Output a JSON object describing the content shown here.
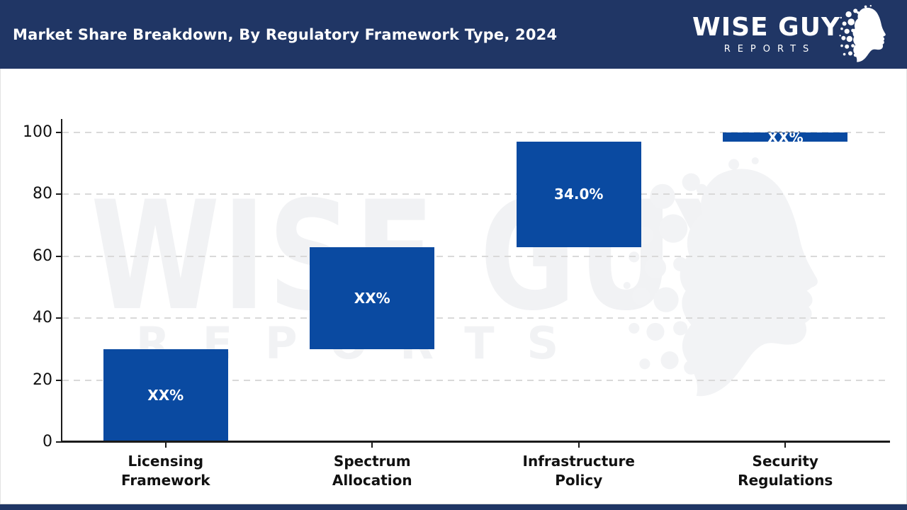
{
  "header": {
    "title": "Market Share Breakdown, By Regulatory Framework Type, 2024",
    "logo": {
      "brand": "WISE GUY",
      "sub": "REPORTS"
    }
  },
  "watermark": {
    "brand": "WISE GUY",
    "sub": "REPORTS"
  },
  "colors": {
    "header_bg": "#203665",
    "footer_bg": "#203665",
    "bar": "#0a4aa1",
    "grid": "#d9d9d9",
    "axis": "#1a1a1a",
    "watermark": "#f1f2f4",
    "split_label_dark": "#16243f"
  },
  "chart_data": {
    "type": "bar",
    "subtype": "waterfall",
    "title": "Market Share Breakdown, By Regulatory Framework Type, 2024",
    "xlabel": "",
    "ylabel": "",
    "ylim": [
      0,
      100
    ],
    "yticks": [
      0,
      20,
      40,
      60,
      80,
      100
    ],
    "grid": "dashed-horizontal",
    "legend": "none",
    "bars": [
      {
        "category": [
          "Licensing",
          "Framework"
        ],
        "start": 0,
        "end": 30,
        "value_label": "XX%"
      },
      {
        "category": [
          "Spectrum",
          "Allocation"
        ],
        "start": 30,
        "end": 63,
        "value_label": "XX%"
      },
      {
        "category": [
          "Infrastructure",
          "Policy"
        ],
        "start": 63,
        "end": 97,
        "value_label": "34.0%"
      },
      {
        "category": [
          "Security",
          "Regulations"
        ],
        "start": 97,
        "end": 100,
        "value_label": "XX%",
        "label_split": true
      }
    ]
  }
}
